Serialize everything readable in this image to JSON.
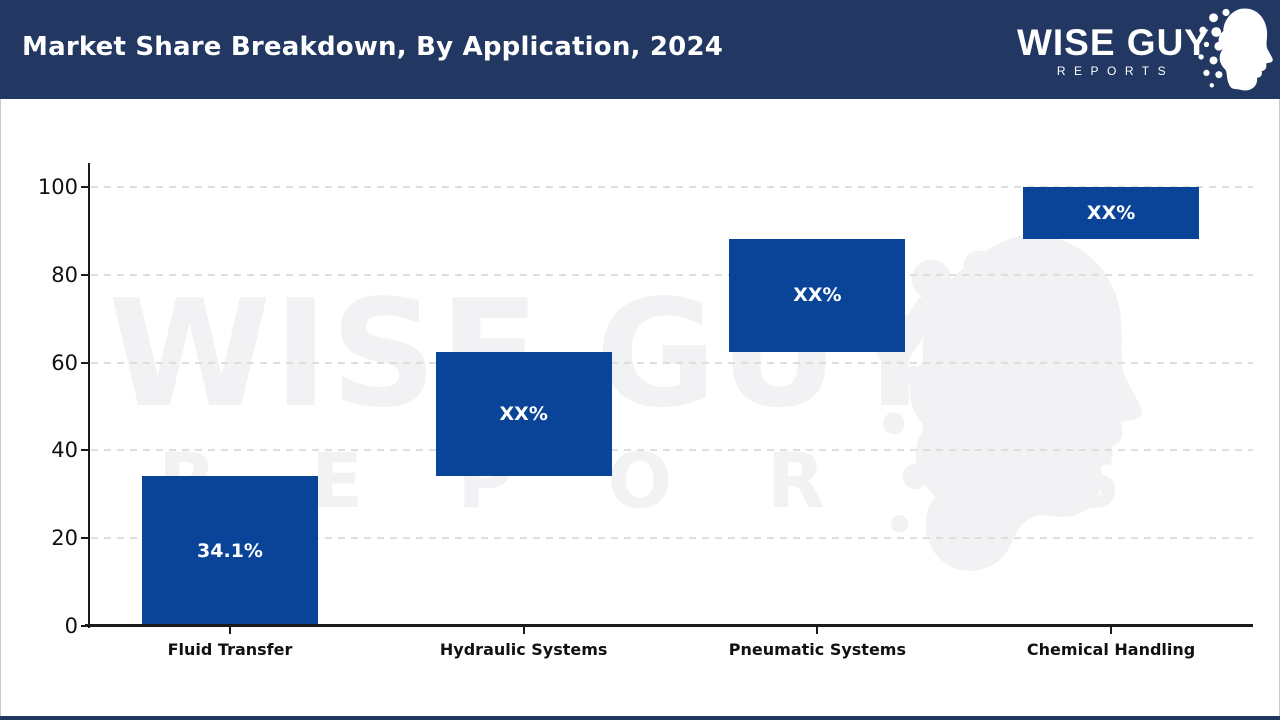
{
  "header": {
    "title": "Market Share Breakdown, By Application, 2024",
    "logo": {
      "line1": "WISE GUY",
      "line2": "REPORTS"
    }
  },
  "watermark": {
    "line1": "WISE GUY",
    "line2": "R E P O R T S"
  },
  "colors": {
    "header_bg": "#223862",
    "footer_bar": "#223862",
    "bar": "#0a4499",
    "bar_label": "#ffffff",
    "axis": "#1a1a1a",
    "gridline": "#dedede",
    "watermark": "#f2f2f4"
  },
  "chart_data": {
    "type": "bar",
    "subtype": "waterfall",
    "title": "Market Share Breakdown, By Application, 2024",
    "xlabel": "",
    "ylabel": "",
    "categories": [
      "Fluid Transfer",
      "Hydraulic Systems",
      "Pneumatic Systems",
      "Chemical Handling"
    ],
    "bars": [
      {
        "category": "Fluid Transfer",
        "start": 0,
        "end": 34.1,
        "label": "34.1%"
      },
      {
        "category": "Hydraulic Systems",
        "start": 34.1,
        "end": 62.4,
        "label": "XX%"
      },
      {
        "category": "Pneumatic Systems",
        "start": 62.4,
        "end": 88.2,
        "label": "XX%"
      },
      {
        "category": "Chemical Handling",
        "start": 88.2,
        "end": 100,
        "label": "XX%"
      }
    ],
    "ylim": [
      0,
      105
    ],
    "yticks": [
      0,
      20,
      40,
      60,
      80,
      100
    ],
    "grid": "horizontal-dashed",
    "legend": "none"
  }
}
